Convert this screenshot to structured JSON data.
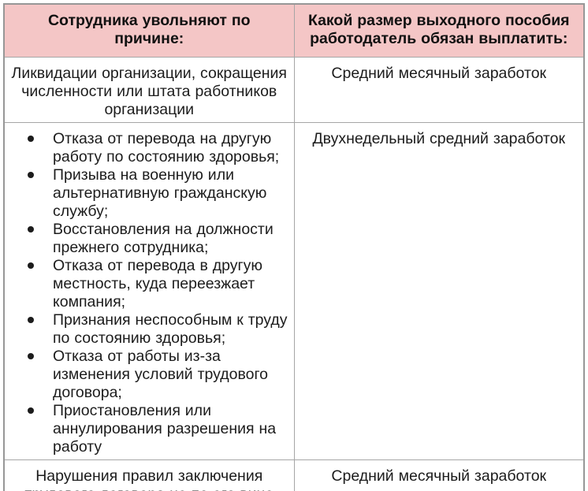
{
  "colors": {
    "header_bg": "#f4c6c6",
    "header_text": "#111111",
    "border_outer": "#979797",
    "border_inner": "#a6a6a6",
    "text": "#1c1c1c"
  },
  "table": {
    "headers": [
      "Сотрудника увольняют по причине:",
      "Какой размер выходного пособия работодатель обязан выплатить:"
    ],
    "rows": [
      {
        "reason": "Ликвидации организации, сокращения численности или штата работников организации",
        "payment": "Средний месячный заработок"
      },
      {
        "reasons": [
          "Отказа от перевода на другую работу по состоянию здоровья;",
          "Призыва на военную или альтернативную гражданскую службу;",
          "Восстановления на должности прежнего сотрудника;",
          "Отказа от перевода в другую местность, куда переезжает компания;",
          "Признания неспособным к труду по состоянию здоровья;",
          "Отказа от работы из-за изменения условий трудового договора;",
          "Приостановления или аннулирования разрешения на работу"
        ],
        "payment": "Двухнедельный средний заработок"
      },
      {
        "reason": "Нарушения правил заключения трудового договора не по его вине",
        "payment": "Средний месячный заработок"
      }
    ]
  }
}
